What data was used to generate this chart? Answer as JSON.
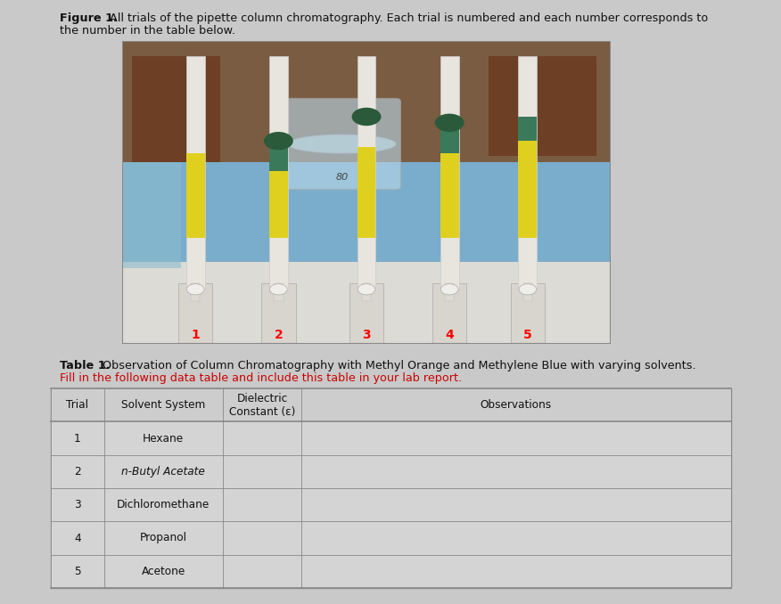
{
  "figure_caption_bold": "Figure 1.",
  "figure_caption_normal": " All trials of the pipette column chromatography. Each trial is numbered and each number corresponds to",
  "figure_caption_line2": "the number in the table below.",
  "table_title_bold": "Table 1.",
  "table_title_normal": " Observation of Column Chromatography with Methyl Orange and Methylene Blue with varying solvents.",
  "table_subtitle_red": "Fill in the following data table and include this table in your lab report.",
  "table_headers": [
    "Trial",
    "Solvent System",
    "Dielectric\nConstant (ε)",
    "Observations"
  ],
  "table_rows": [
    [
      "1",
      "Hexane",
      "",
      ""
    ],
    [
      "2",
      "n-Butyl Acetate",
      "",
      ""
    ],
    [
      "3",
      "Dichloromethane",
      "",
      ""
    ],
    [
      "4",
      "Propanol",
      "",
      ""
    ],
    [
      "5",
      "Acetone",
      "",
      ""
    ]
  ],
  "page_background": "#c9c9c9",
  "text_color": "#111111",
  "red_color": "#cc0000",
  "caption_fontsize": 9.2,
  "table_fontsize": 9.2,
  "fig_width": 8.76,
  "fig_height": 6.78
}
